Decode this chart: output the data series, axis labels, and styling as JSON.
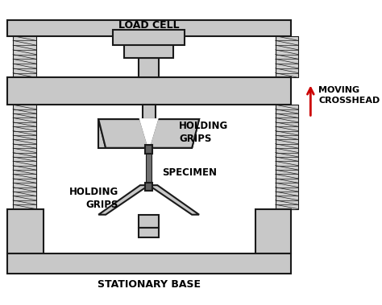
{
  "bg_color": "#ffffff",
  "gray_fill": "#c8c8c8",
  "gray_dark": "#a8a8a8",
  "dark_outline": "#1a1a1a",
  "text_color": "#000000",
  "red_arrow_color": "#cc0000",
  "title_text": "STATIONARY BASE",
  "load_cell_text": "LOAD CELL",
  "holding_grips_top_text": "HOLDING\nGRIPS",
  "holding_grips_bot_text": "HOLDING\nGRIPS",
  "specimen_text": "SPECIMEN",
  "moving_crosshead_text": "MOVING\nCROSSHEAD",
  "figsize": [
    4.74,
    3.79
  ],
  "dpi": 100
}
